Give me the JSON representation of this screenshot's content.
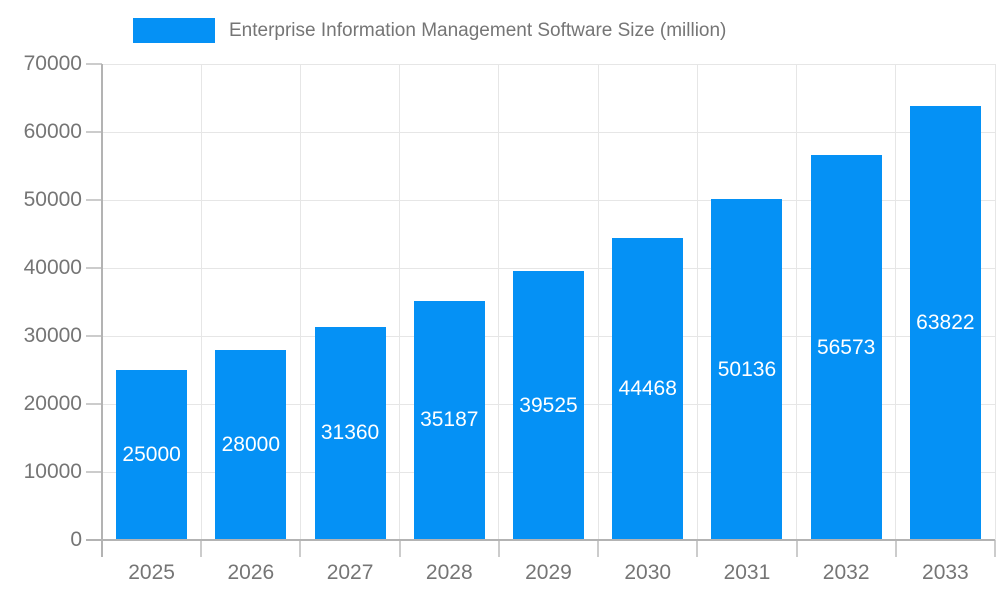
{
  "chart_data": {
    "type": "bar",
    "legend_label": "Enterprise Information Management Software Size (million)",
    "legend_position": "top",
    "categories": [
      "2025",
      "2026",
      "2027",
      "2028",
      "2029",
      "2030",
      "2031",
      "2032",
      "2033"
    ],
    "values": [
      25000,
      28000,
      31360,
      35187,
      39525,
      44468,
      50136,
      56573,
      63822
    ],
    "annotations": [
      "25000",
      "28000",
      "31360",
      "35187",
      "39525",
      "44468",
      "50136",
      "56573",
      "63822"
    ],
    "ylim": [
      0,
      70000
    ],
    "ytick_step": 10000,
    "ytick_labels": [
      "0",
      "10000",
      "20000",
      "30000",
      "40000",
      "50000",
      "60000",
      "70000"
    ],
    "grid": true,
    "colors": {
      "bar": "#0591f5",
      "annotation_text": "#ffffff",
      "axis_text": "#757575",
      "gridline": "#e6e6e6",
      "axis_line": "#b3b3b3",
      "tick": "#cccccc",
      "background": "#ffffff"
    }
  }
}
